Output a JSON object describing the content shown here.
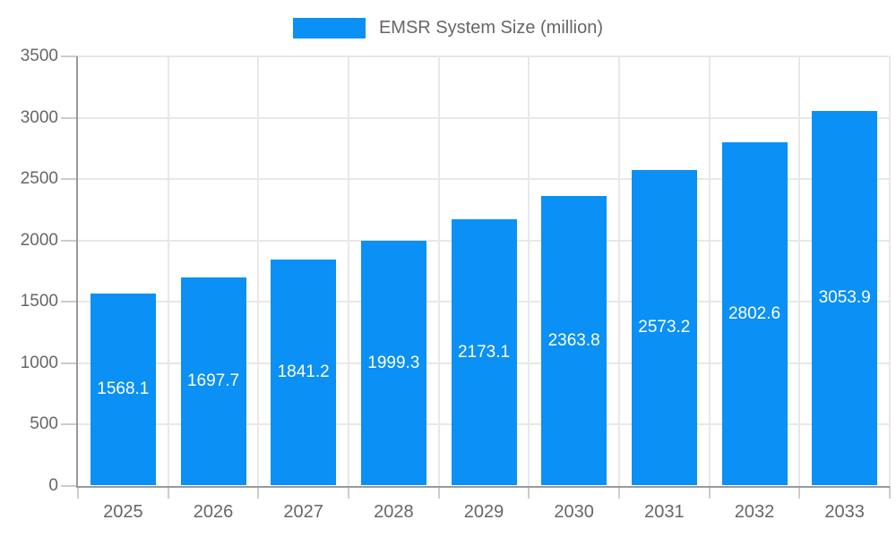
{
  "chart_data": {
    "type": "bar",
    "title": "",
    "legend": {
      "label": "EMSR System Size (million)",
      "position": "top"
    },
    "categories": [
      "2025",
      "2026",
      "2027",
      "2028",
      "2029",
      "2030",
      "2031",
      "2032",
      "2033"
    ],
    "values": [
      1568.1,
      1697.7,
      1841.2,
      1999.3,
      2173.1,
      2363.8,
      2573.2,
      2802.6,
      3053.9
    ],
    "value_decimals": 1,
    "xlabel": "",
    "ylabel": "",
    "ylim": [
      0,
      3500
    ],
    "y_ticks": [
      0,
      500,
      1000,
      1500,
      2000,
      2500,
      3000,
      3500
    ],
    "grid": true,
    "legend_position": "top",
    "colors": {
      "bar": "#0b90f5",
      "value_label": "#ffffff",
      "grid_line": "#e8e8e8",
      "axis_line": "#999999",
      "tick_line": "#cccccc",
      "text": "#666666",
      "background": "#ffffff"
    }
  }
}
